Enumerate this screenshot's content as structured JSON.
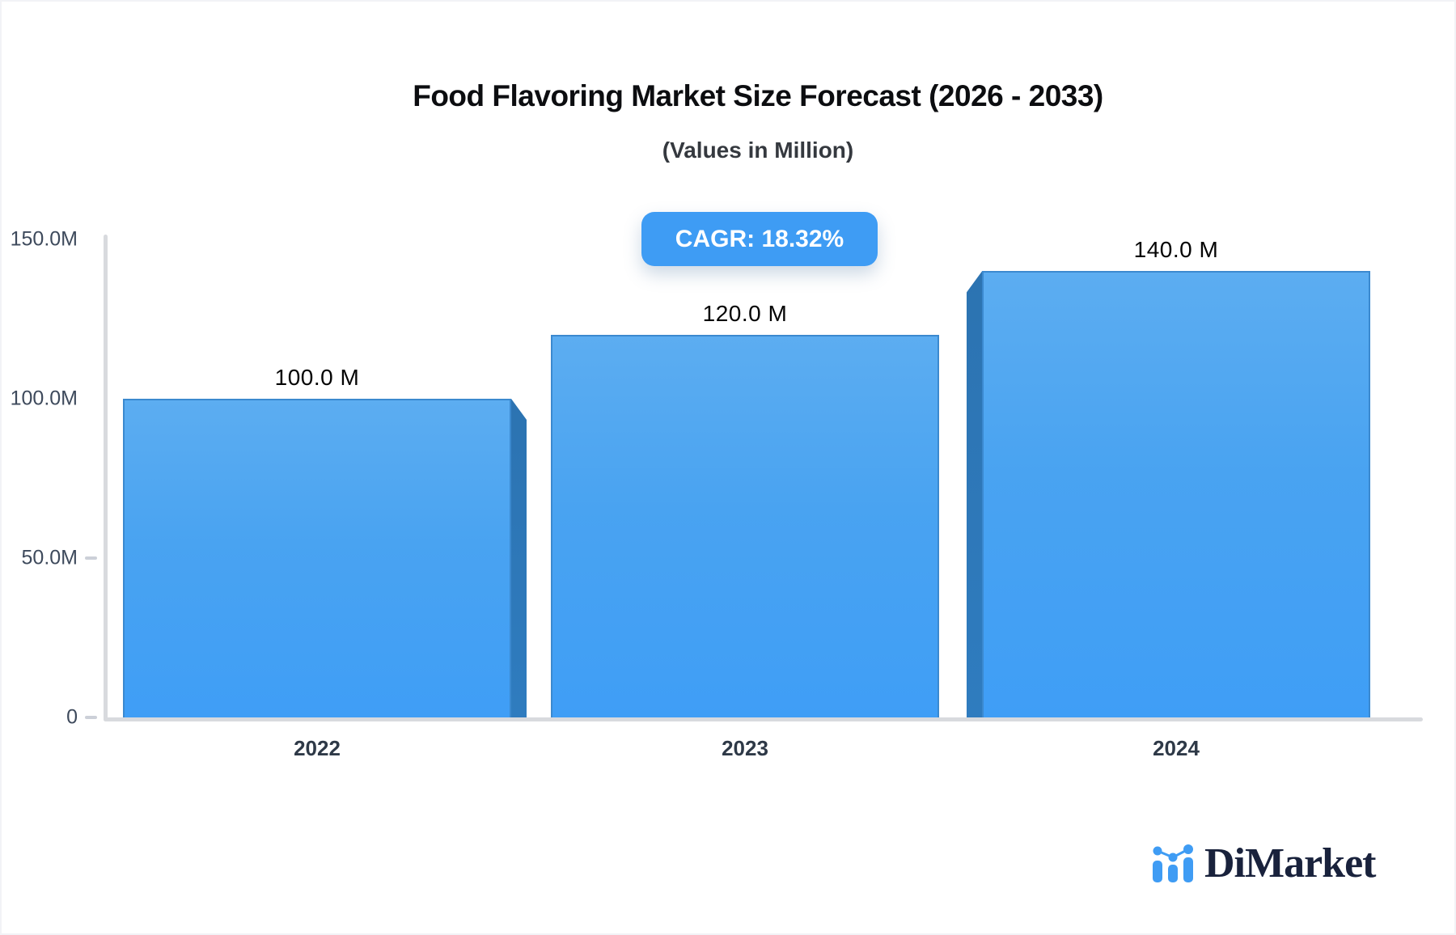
{
  "header": {
    "title": "Food Flavoring Market Size Forecast (2026 - 2033)",
    "subtitle": "(Values in Million)",
    "cagr_label": "CAGR: 18.32%"
  },
  "chart_data": {
    "type": "bar",
    "categories": [
      "2022",
      "2023",
      "2024"
    ],
    "values": [
      100,
      120,
      140
    ],
    "value_labels": [
      "100.0 M",
      "120.0 M",
      "140.0 M"
    ],
    "title": "Food Flavoring Market Size Forecast (2026 - 2033)",
    "subtitle": "(Values in Million)",
    "xlabel": "",
    "ylabel": "",
    "ylim": [
      0,
      150
    ],
    "y_ticks": [
      {
        "label": "150.0M",
        "value": 150,
        "dash": false
      },
      {
        "label": "100.0M",
        "value": 100,
        "dash": false
      },
      {
        "label": "50.0M",
        "value": 50,
        "dash": true
      },
      {
        "label": "0",
        "value": 0,
        "dash": true
      }
    ],
    "grid": "off",
    "legend": "none",
    "annotation": "CAGR: 18.32%",
    "colors": {
      "bar_fill_top": "#5cadf1",
      "bar_fill_bottom": "#3f9ef6",
      "bar_border": "#3b89cf",
      "bar_side_3d": "#2e78b8",
      "badge_bg": "#3e9cf4",
      "axis_line": "#d8dade",
      "tick_label": "#3e4a5c",
      "category_label": "#2e3947",
      "value_label": "#040404"
    }
  },
  "logo": {
    "text": "DiMarket",
    "icon": "mini-bar-line-chart-icon",
    "icon_color": "#3f9cf4",
    "text_color": "#19223c"
  }
}
